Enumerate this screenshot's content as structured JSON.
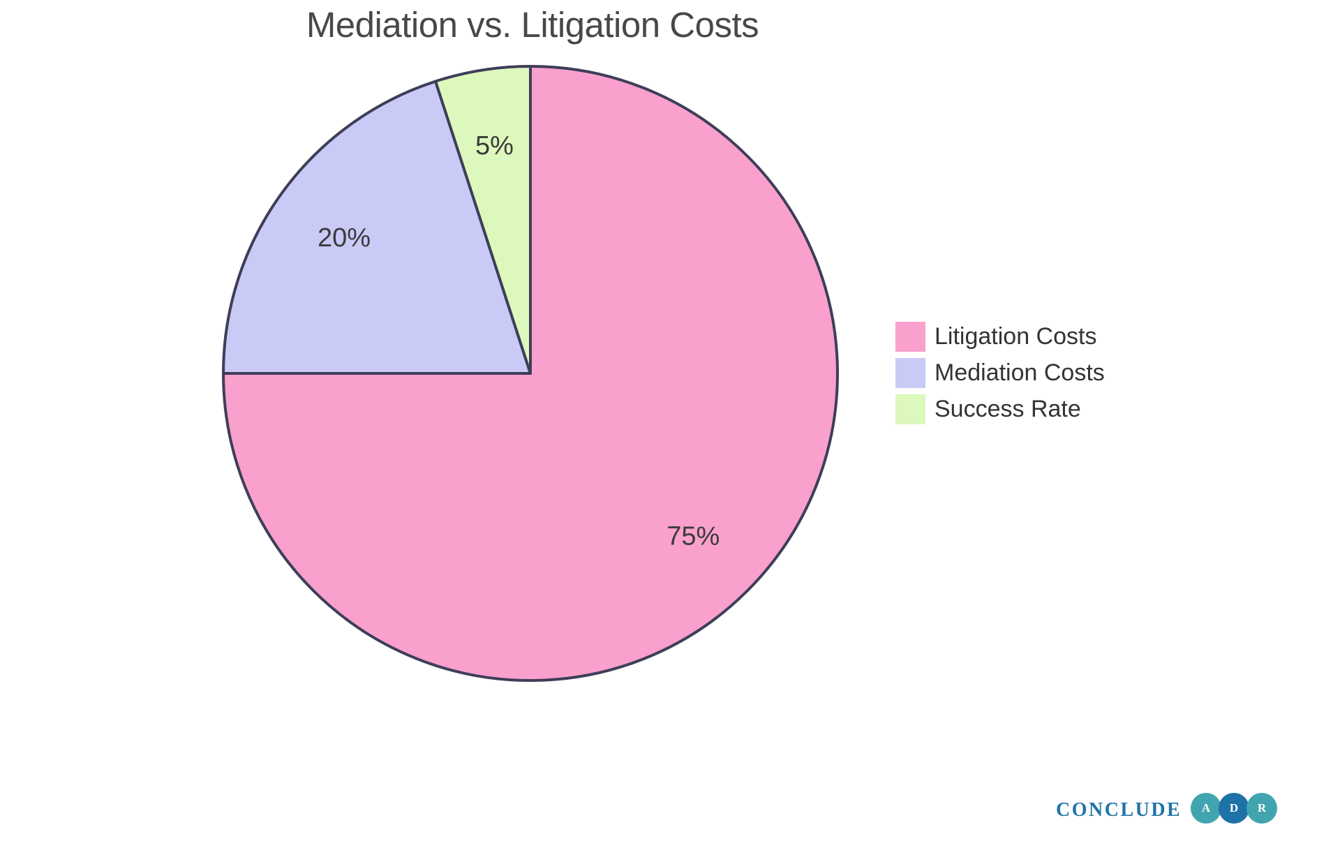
{
  "title": "Mediation vs. Litigation Costs",
  "chart_data": {
    "type": "pie",
    "title": "Mediation vs. Litigation Costs",
    "labels": [
      "Litigation Costs",
      "Mediation Costs",
      "Success Rate"
    ],
    "values": [
      75,
      20,
      5
    ],
    "display_labels": [
      "75%",
      "20%",
      "5%"
    ],
    "colors": [
      "#f9a0cd",
      "#c9caf6",
      "#ddf8bc"
    ],
    "stroke_color": "#3e3e58",
    "start_angle_deg": 0,
    "direction": "clockwise",
    "legend_position": "right",
    "label_radius_fraction": 0.75
  },
  "legend": {
    "items": [
      {
        "label": "Litigation Costs",
        "color": "#f9a0cd"
      },
      {
        "label": "Mediation Costs",
        "color": "#c9caf6"
      },
      {
        "label": "Success Rate",
        "color": "#ddf8bc"
      }
    ]
  },
  "logo": {
    "wordmark": "CONCLUDE",
    "badges": [
      "A",
      "D",
      "R"
    ],
    "wordmark_color": "#2273a8",
    "badge_teal": "#41a5b0",
    "badge_blue": "#1f72a7"
  }
}
